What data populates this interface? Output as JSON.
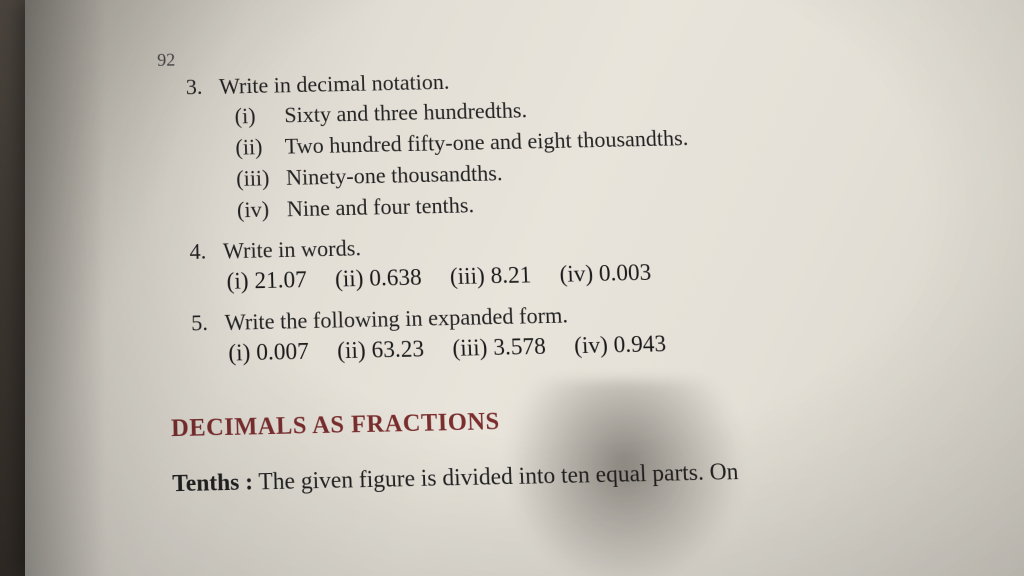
{
  "page_number": "92",
  "questions": [
    {
      "number": "3.",
      "prompt": "Write in decimal notation.",
      "layout": "column",
      "items": [
        {
          "rn": "(i)",
          "text": "Sixty and three hundredths."
        },
        {
          "rn": "(ii)",
          "text": "Two hundred fifty-one and eight thousandths."
        },
        {
          "rn": "(iii)",
          "text": "Ninety-one thousandths."
        },
        {
          "rn": "(iv)",
          "text": "Nine and four tenths."
        }
      ]
    },
    {
      "number": "4.",
      "prompt": "Write in words.",
      "layout": "row",
      "items": [
        {
          "rn": "(i)",
          "text": "21.07"
        },
        {
          "rn": "(ii)",
          "text": "0.638"
        },
        {
          "rn": "(iii)",
          "text": "8.21"
        },
        {
          "rn": "(iv)",
          "text": "0.003"
        }
      ]
    },
    {
      "number": "5.",
      "prompt": "Write the following in expanded form.",
      "layout": "row",
      "items": [
        {
          "rn": "(i)",
          "text": "0.007"
        },
        {
          "rn": "(ii)",
          "text": "63.23"
        },
        {
          "rn": "(iii)",
          "text": "3.578"
        },
        {
          "rn": "(iv)",
          "text": "0.943"
        }
      ]
    }
  ],
  "section_title": "DECIMALS AS FRACTIONS",
  "paragraph": {
    "lead": "Tenths :",
    "rest": " The given figure is divided into ten equal parts. On"
  },
  "colors": {
    "heading": "#7a2e2e",
    "text": "#222222",
    "paper_light": "#e8e4db",
    "paper_dark": "#b8b4ab",
    "background": "#3a3530"
  },
  "typography": {
    "body_fontsize_pt": 17,
    "heading_fontsize_pt": 18,
    "font_family": "serif"
  }
}
